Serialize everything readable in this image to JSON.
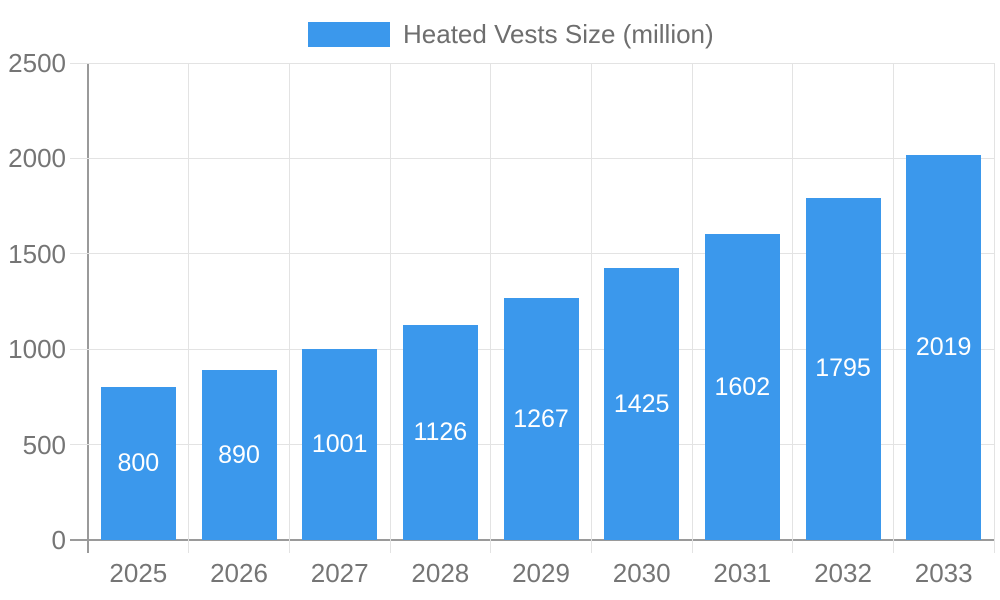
{
  "legend": {
    "label": "Heated Vests Size (million)"
  },
  "chart_data": {
    "type": "bar",
    "title": "Heated Vests Size (million)",
    "categories": [
      "2025",
      "2026",
      "2027",
      "2028",
      "2029",
      "2030",
      "2031",
      "2032",
      "2033"
    ],
    "values": [
      800,
      890,
      1001,
      1126,
      1267,
      1425,
      1602,
      1795,
      2019
    ],
    "value_labels": [
      "800",
      "890",
      "1001",
      "1126",
      "1267",
      "1425",
      "1602",
      "1795",
      "2019"
    ],
    "xlabel": "",
    "ylabel": "",
    "ylim": [
      0,
      2500
    ],
    "yticks": [
      0,
      500,
      1000,
      1500,
      2000,
      2500
    ],
    "grid": true,
    "legend_position": "top-center",
    "value_label_position": "inside-middle"
  },
  "colors": {
    "bar": "#3b98ec",
    "value_text": "#ffffff",
    "grid_line": "#e3e3e3",
    "axis_line": "#9a9a9a",
    "tick_text": "#757575",
    "legend_text": "#6e6e6e",
    "background": "#ffffff"
  }
}
